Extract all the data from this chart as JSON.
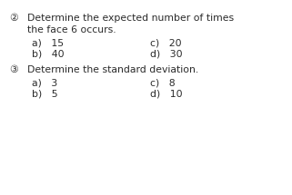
{
  "background_color": "#ffffff",
  "q2_circle": "②",
  "q2_line1": "Determine the expected number of times",
  "q2_line2": "the face 6 occurs.",
  "q2_a": "a)   15",
  "q2_b": "b)   40",
  "q2_c": "c)   20",
  "q2_d": "d)   30",
  "q3_circle": "③",
  "q3_line1": "Determine the standard deviation.",
  "q3_a": "a)   3",
  "q3_b": "b)   5",
  "q3_c": "c)   8",
  "q3_d": "d)   10",
  "font_size_main": 7.8,
  "text_color": "#2a2a2a",
  "font_family": "DejaVu Sans"
}
